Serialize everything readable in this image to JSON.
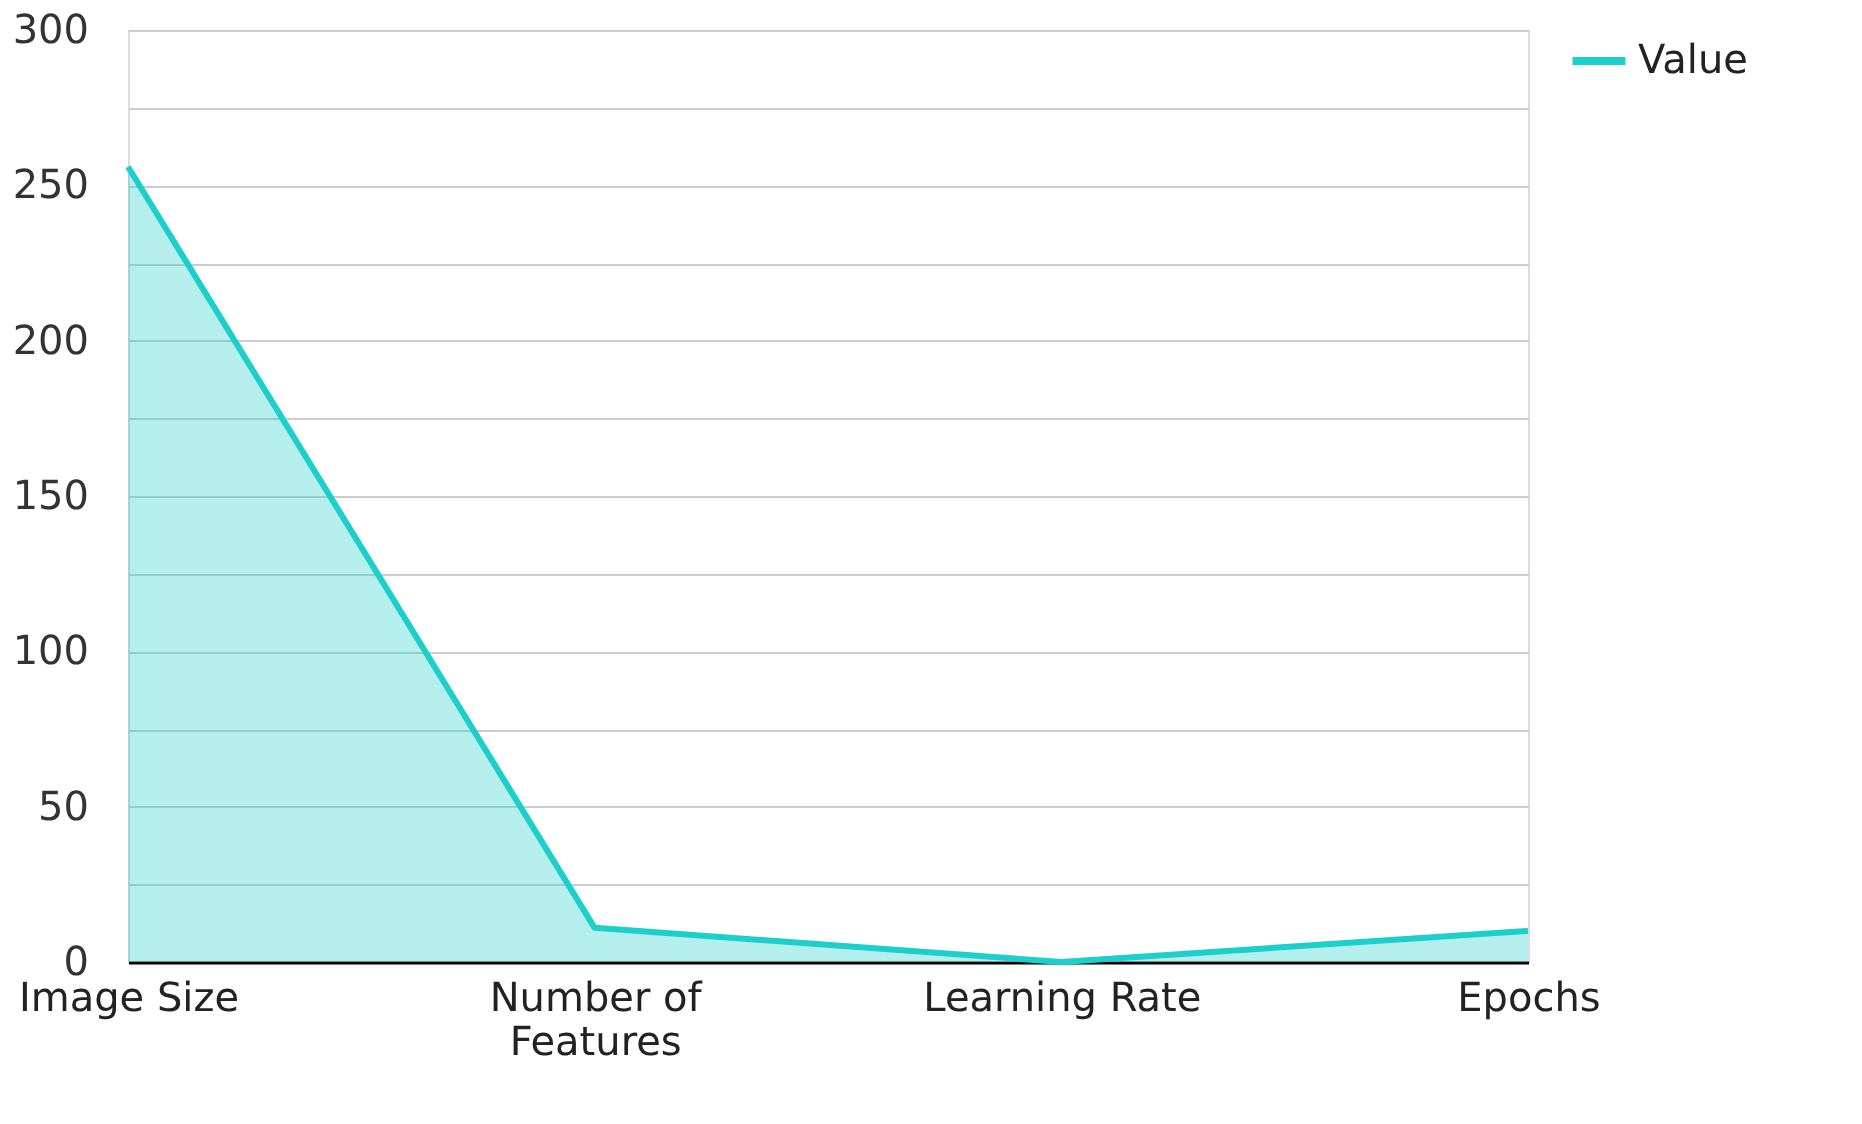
{
  "chart_data": {
    "type": "area",
    "categories": [
      "Image Size",
      "Number of Features",
      "Learning Rate",
      "Epochs"
    ],
    "series": [
      {
        "name": "Value",
        "color": "#1ccfca",
        "values": [
          256,
          11,
          0,
          10
        ]
      }
    ],
    "ylim": [
      0,
      300
    ],
    "yticks": [
      0,
      {
        "value": 25,
        "label": null
      },
      50,
      {
        "value": 75,
        "label": null
      },
      100,
      {
        "value": 125,
        "label": null
      },
      150,
      {
        "value": 175,
        "label": null
      },
      200,
      {
        "value": 225,
        "label": null
      },
      250,
      {
        "value": 275,
        "label": null
      },
      300
    ],
    "grid": "y",
    "legend": "top right"
  }
}
